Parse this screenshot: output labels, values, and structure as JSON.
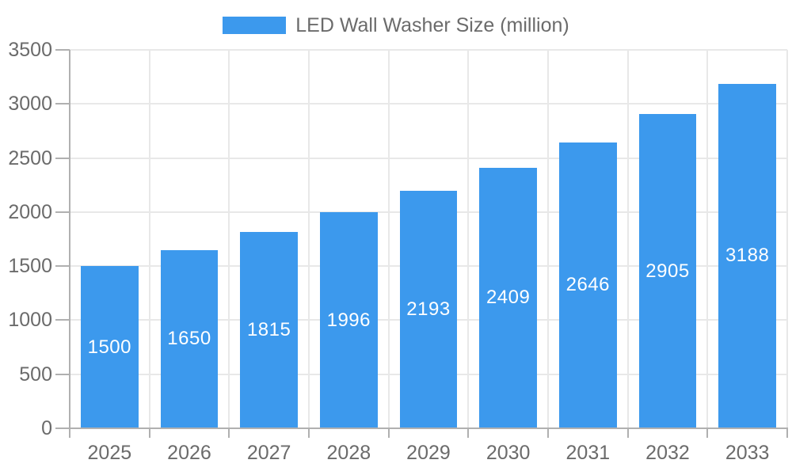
{
  "chart_data": {
    "type": "bar",
    "title": "",
    "categories": [
      "2025",
      "2026",
      "2027",
      "2028",
      "2029",
      "2030",
      "2031",
      "2032",
      "2033"
    ],
    "series": [
      {
        "name": "LED Wall Washer Size (million)",
        "color": "#3C99ED",
        "values": [
          1500,
          1650,
          1815,
          1996,
          2193,
          2409,
          2646,
          2905,
          3188
        ]
      }
    ],
    "xlabel": "",
    "ylabel": "",
    "ylim": [
      0,
      3500
    ],
    "yticks": [
      0,
      500,
      1000,
      1500,
      2000,
      2500,
      3000,
      3500
    ],
    "grid": true,
    "legend_position": "top-center",
    "value_label_position": "inside-center",
    "value_label_color": "#ffffff",
    "axis_text_color": "#6b6b6b",
    "axis_line_color": "#b0b0b0",
    "grid_color": "#e8e8e8",
    "background": "#ffffff"
  }
}
